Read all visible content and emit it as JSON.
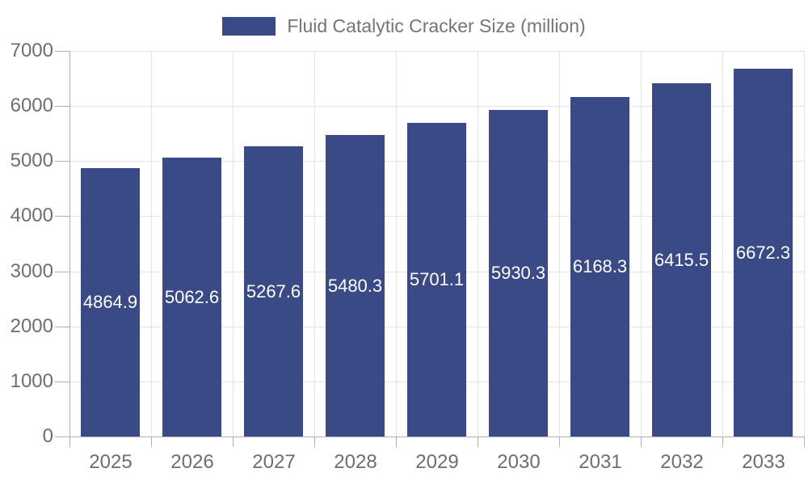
{
  "legend": {
    "position": "top"
  },
  "chart_data": {
    "type": "bar",
    "title": "Fluid Catalytic Cracker Size (million)",
    "legend": [
      "Fluid Catalytic Cracker Size (million)"
    ],
    "legend_position": "top",
    "categories": [
      "2025",
      "2026",
      "2027",
      "2028",
      "2029",
      "2030",
      "2031",
      "2032",
      "2033"
    ],
    "values": [
      4864.9,
      5062.6,
      5267.6,
      5480.3,
      5701.1,
      5930.3,
      6168.3,
      6415.5,
      6672.3
    ],
    "value_labels": [
      "4864.9",
      "5062.6",
      "5267.6",
      "5480.3",
      "5701.1",
      "5930.3",
      "6168.3",
      "6415.5",
      "6672.3"
    ],
    "xlabel": "",
    "ylabel": "",
    "ylim": [
      0,
      7000
    ],
    "ytick_step": 1000,
    "yticks": [
      "0",
      "1000",
      "2000",
      "3000",
      "4000",
      "5000",
      "6000",
      "7000"
    ],
    "grid": true,
    "bar_color": "#3A4A87",
    "value_label_color": "#FFFFFF",
    "axis_color": "#AFAFAF",
    "grid_color": "#E3E3E3",
    "tick_label_color": "#6E6E6E",
    "legend_text_color": "#757575",
    "background_color": "#FFFFFF"
  }
}
